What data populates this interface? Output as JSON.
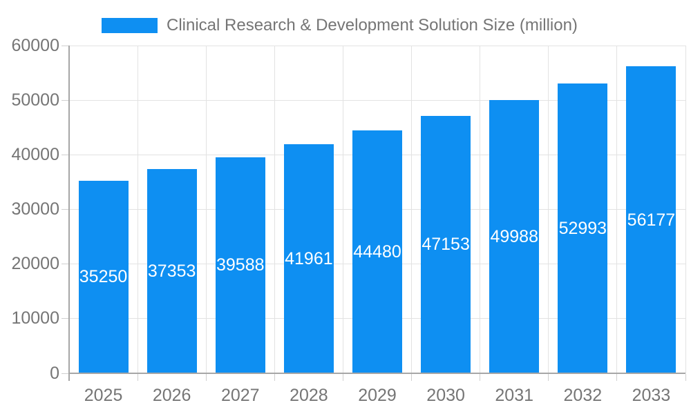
{
  "legend": {
    "label": "Clinical Research & Development Solution Size (million)"
  },
  "chart_data": {
    "type": "bar",
    "title": "Clinical Research & Development Solution Size (million)",
    "categories": [
      "2025",
      "2026",
      "2027",
      "2028",
      "2029",
      "2030",
      "2031",
      "2032",
      "2033"
    ],
    "series": [
      {
        "name": "Clinical Research & Development Solution Size (million)",
        "color": "#0e8ff2",
        "values": [
          35250,
          37353,
          39588,
          41961,
          44480,
          47153,
          49988,
          52993,
          56177
        ]
      }
    ],
    "value_labels": "inside-center",
    "value_label_color": "#ffffff",
    "xlabel": "",
    "ylabel": "",
    "ylim": [
      0,
      60000
    ],
    "ytick_step": 10000,
    "yticks": [
      0,
      10000,
      20000,
      30000,
      40000,
      50000,
      60000
    ],
    "legend_position": "top",
    "grid": {
      "horizontal": true,
      "vertical": true
    },
    "colors": {
      "bar": "#0e8ff2",
      "gridline": "#e2e2e2",
      "axis": "#a6a6a6",
      "tick": "#cfcfcf",
      "axis_text": "#757575",
      "value_text": "#ffffff",
      "background": "#ffffff"
    }
  }
}
